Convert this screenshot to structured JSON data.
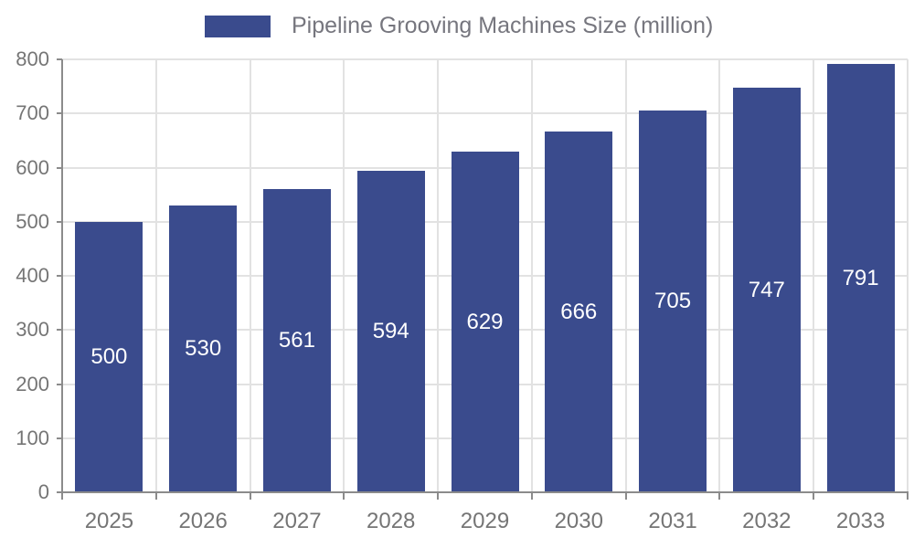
{
  "legend": {
    "label": "Pipeline Grooving Machines Size (million)"
  },
  "chart_data": {
    "type": "bar",
    "title": "Pipeline Grooving Machines Size (million)",
    "categories": [
      "2025",
      "2026",
      "2027",
      "2028",
      "2029",
      "2030",
      "2031",
      "2032",
      "2033"
    ],
    "values": [
      500,
      530,
      561,
      594,
      629,
      666,
      705,
      747,
      791
    ],
    "series": [
      {
        "name": "Pipeline Grooving Machines Size (million)",
        "values": [
          500,
          530,
          561,
          594,
          629,
          666,
          705,
          747,
          791
        ]
      }
    ],
    "xlabel": "",
    "ylabel": "",
    "ylim": [
      0,
      800
    ],
    "ytick_step": 100,
    "grid": true,
    "legend_position": "top-center",
    "value_labels": "inside-center",
    "colors": {
      "bar": "#3a4b8d",
      "value_label": "#ffffff",
      "axis": "#8b8b8b",
      "gridline": "#e2e2e2",
      "tick_label": "#757575",
      "legend_text": "#76767e",
      "background": "#ffffff"
    }
  }
}
